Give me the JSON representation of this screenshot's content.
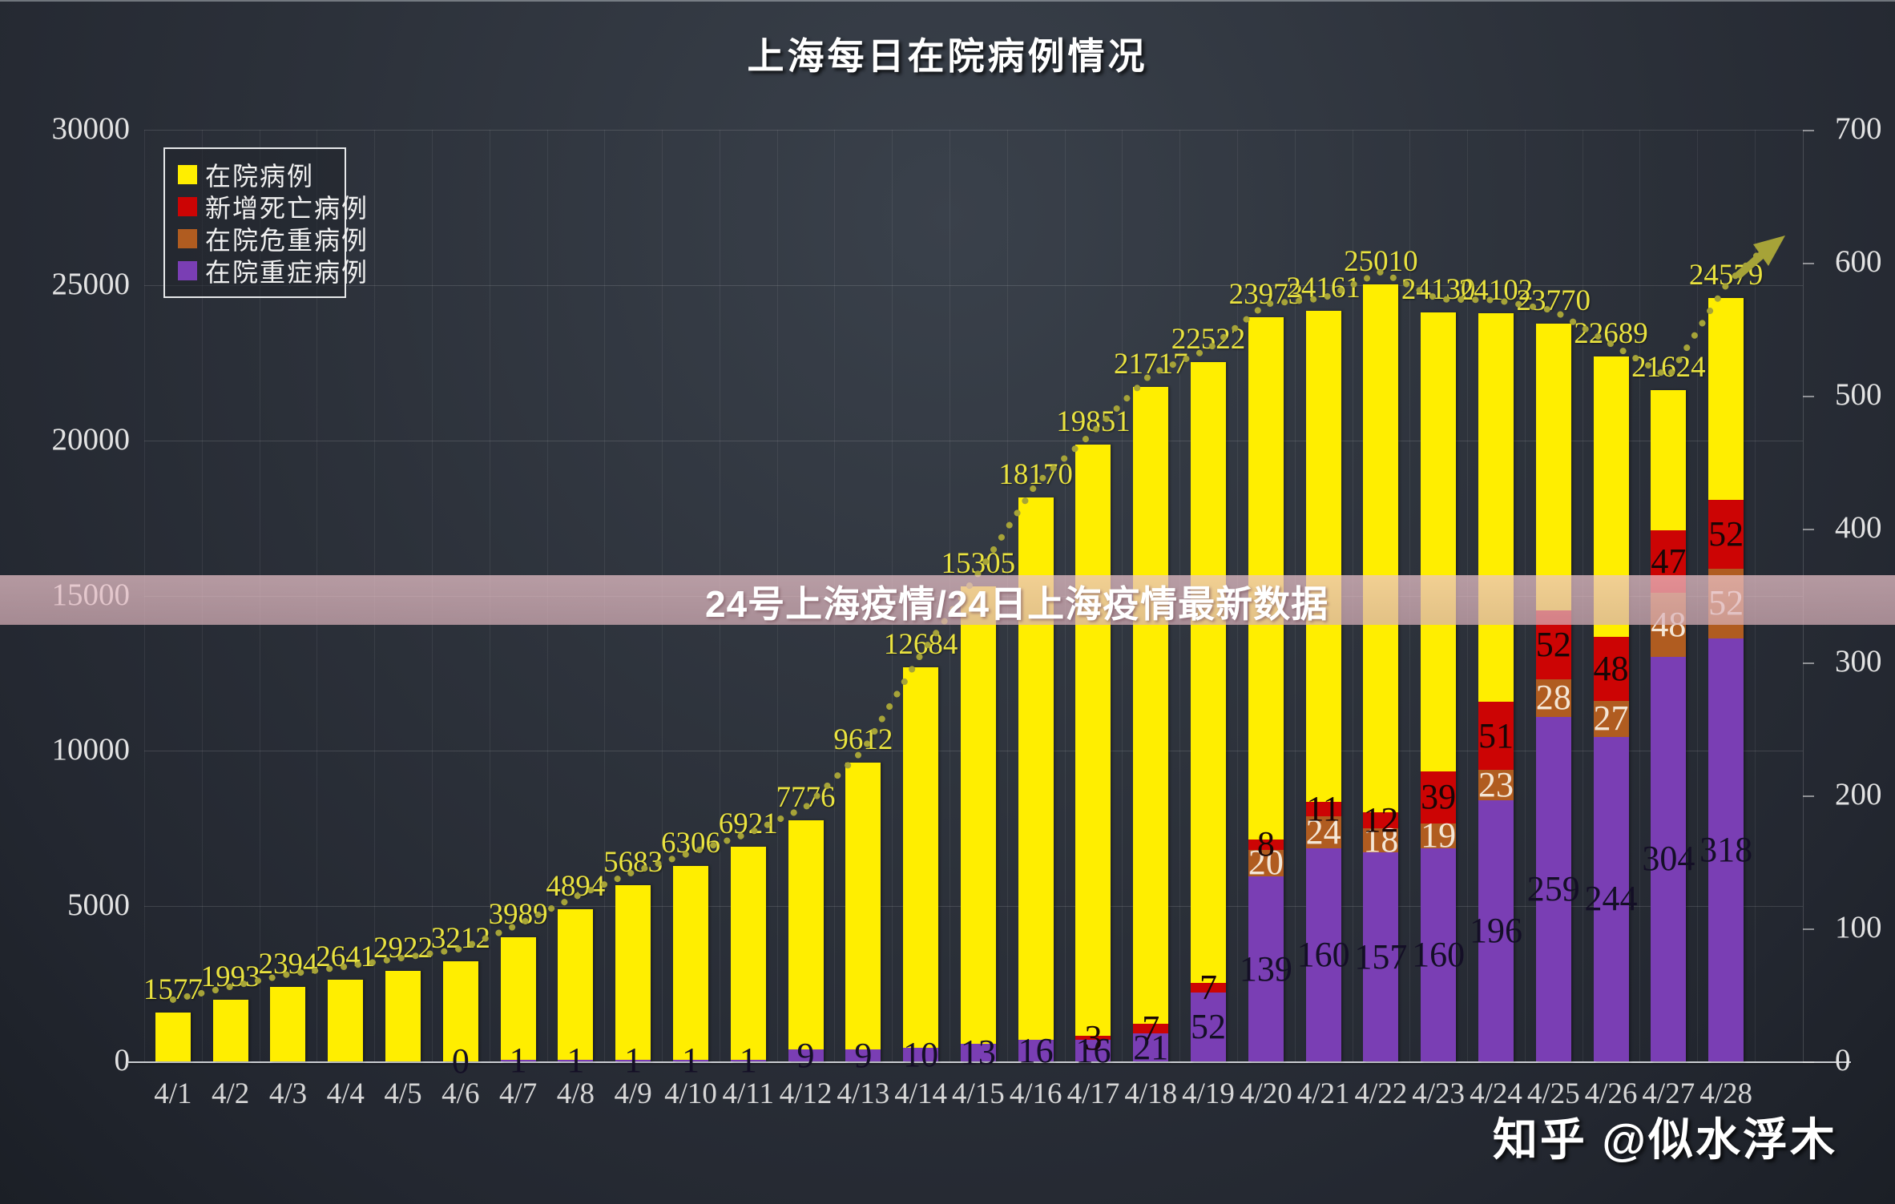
{
  "title": "上海每日在院病例情况",
  "watermark": {
    "text": "24号上海疫情/24日上海疫情最新数据"
  },
  "credit": {
    "text": "知乎 @似水浮木"
  },
  "legend": [
    {
      "label": "在院病例",
      "color": "#ffee00"
    },
    {
      "label": "新增死亡病例",
      "color": "#cc0404"
    },
    {
      "label": "在院危重病例",
      "color": "#b05c20"
    },
    {
      "label": "在院重症病例",
      "color": "#7a3eb4"
    }
  ],
  "colors": {
    "trend_line": "#a6a338",
    "bar_label_yellow": "#e9e23f",
    "segment_label_on_purple": "#140f26",
    "segment_label_on_orange": "#f4e6d6",
    "segment_label_on_red": "#190606"
  },
  "chart_data": {
    "type": "bar",
    "title": "上海每日在院病例情况",
    "categories": [
      "4/1",
      "4/2",
      "4/3",
      "4/4",
      "4/5",
      "4/6",
      "4/7",
      "4/8",
      "4/9",
      "4/10",
      "4/11",
      "4/12",
      "4/13",
      "4/14",
      "4/15",
      "4/16",
      "4/17",
      "4/18",
      "4/19",
      "4/20",
      "4/21",
      "4/22",
      "4/23",
      "4/24",
      "4/25",
      "4/26",
      "4/27",
      "4/28"
    ],
    "series": [
      {
        "name": "在院病例",
        "axis": "left",
        "color": "#ffee00",
        "values": [
          1577,
          1993,
          2394,
          2641,
          2922,
          3212,
          3989,
          4894,
          5683,
          6306,
          6921,
          7776,
          9612,
          12684,
          15305,
          18170,
          19851,
          21717,
          22522,
          23973,
          24161,
          25010,
          24130,
          24102,
          23770,
          22689,
          21624,
          24579
        ]
      },
      {
        "name": "新增死亡病例",
        "axis": "right",
        "color": "#cc0404",
        "values": [
          null,
          null,
          null,
          null,
          null,
          null,
          null,
          null,
          null,
          null,
          null,
          null,
          null,
          null,
          null,
          null,
          3,
          7,
          7,
          8,
          11,
          12,
          39,
          51,
          52,
          48,
          47,
          52
        ]
      },
      {
        "name": "在院危重病例",
        "axis": "right",
        "color": "#b05c20",
        "values": [
          null,
          null,
          null,
          null,
          null,
          null,
          null,
          null,
          null,
          null,
          null,
          null,
          null,
          null,
          null,
          null,
          null,
          null,
          null,
          20,
          24,
          18,
          19,
          23,
          28,
          27,
          48,
          52
        ]
      },
      {
        "name": "在院重症病例",
        "axis": "right",
        "color": "#7a3eb4",
        "values": [
          null,
          null,
          null,
          null,
          null,
          0,
          1,
          1,
          1,
          1,
          1,
          9,
          9,
          10,
          13,
          16,
          16,
          21,
          52,
          139,
          160,
          157,
          160,
          196,
          259,
          244,
          304,
          318
        ]
      }
    ],
    "left_axis": {
      "min": 0,
      "max": 30000,
      "step": 5000,
      "ticks": [
        0,
        5000,
        10000,
        15000,
        20000,
        25000,
        30000
      ]
    },
    "right_axis": {
      "min": 0,
      "max": 700,
      "step": 100,
      "ticks": [
        0,
        100,
        200,
        300,
        400,
        500,
        600,
        700
      ]
    },
    "stack_order_bottom_to_top": [
      "在院重症病例",
      "在院危重病例",
      "新增死亡病例"
    ],
    "trend_line": {
      "follows": "在院病例",
      "style": "dotted",
      "arrow_end": true
    },
    "legend_position": "top-left",
    "grid": true
  }
}
